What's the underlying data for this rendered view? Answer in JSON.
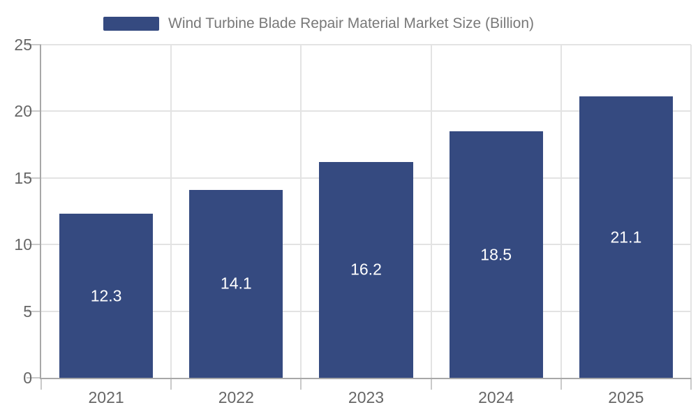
{
  "legend": {
    "label": "Wind Turbine Blade Repair Material Market Size (Billion)"
  },
  "chart_data": {
    "type": "bar",
    "title": "Wind Turbine Blade Repair Material Market Size (Billion)",
    "categories": [
      "2021",
      "2022",
      "2023",
      "2024",
      "2025"
    ],
    "values": [
      12.3,
      14.1,
      16.2,
      18.5,
      21.1
    ],
    "series": [
      {
        "name": "Wind Turbine Blade Repair Material Market Size (Billion)",
        "values": [
          12.3,
          14.1,
          16.2,
          18.5,
          21.1
        ]
      }
    ],
    "bar_labels": [
      "12.3",
      "14.1",
      "16.2",
      "18.5",
      "21.1"
    ],
    "xlabel": "",
    "ylabel": "",
    "ylim": [
      0,
      25
    ],
    "yticks": [
      0,
      5,
      10,
      15,
      20,
      25
    ],
    "grid": true,
    "legend_position": "top-left",
    "colors": {
      "bar": "#354a80",
      "bar_label": "#ffffff",
      "grid": "#e3e3e3",
      "tick": "#c9c9c9",
      "axis": "#a8a8a8",
      "tick_label": "#666666",
      "legend_text": "#787878"
    }
  }
}
